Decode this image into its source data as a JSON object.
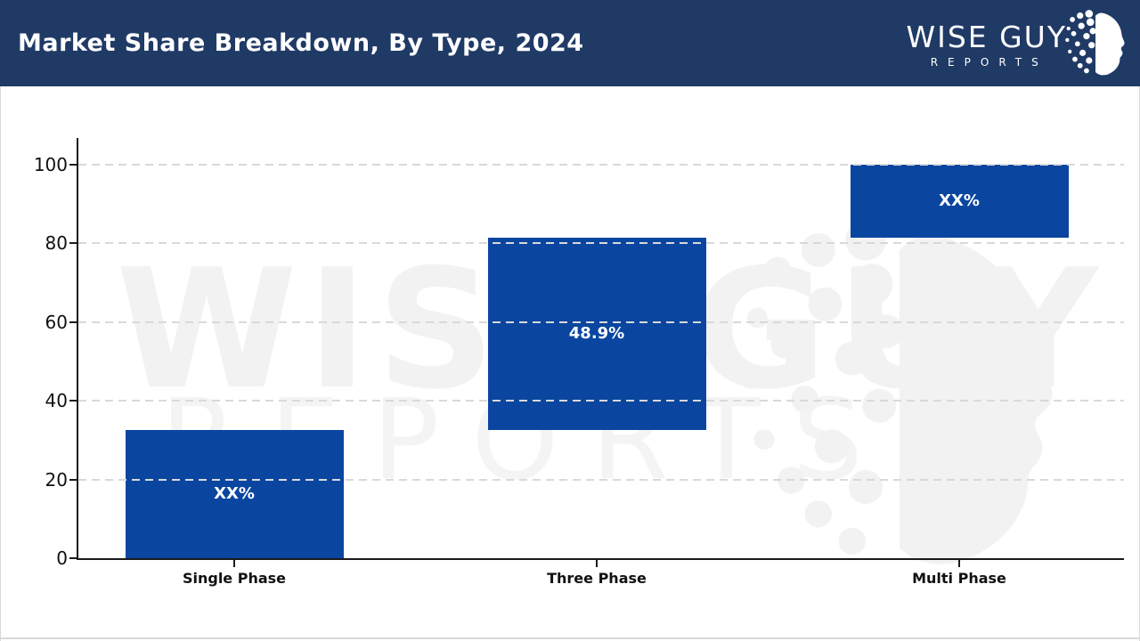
{
  "header": {
    "title": "Market Share Breakdown, By Type, 2024",
    "logo": {
      "name": "WISE GUY",
      "sub": "REPORTS"
    }
  },
  "watermark": {
    "line1": "WISE GUY",
    "line2": "REPORTS"
  },
  "chart_data": {
    "type": "bar",
    "variant": "waterfall",
    "title": "Market Share Breakdown, By Type, 2024",
    "categories": [
      "Single Phase",
      "Three Phase",
      "Multi Phase"
    ],
    "segments": [
      {
        "category": "Single Phase",
        "start": 0,
        "end": 32.5,
        "label": "XX%"
      },
      {
        "category": "Three Phase",
        "start": 32.5,
        "end": 81.4,
        "label": "48.9%"
      },
      {
        "category": "Multi Phase",
        "start": 81.4,
        "end": 100,
        "label": "XX%"
      }
    ],
    "xlabel": "",
    "ylabel": "",
    "yticks": [
      0,
      20,
      40,
      60,
      80,
      100
    ],
    "ylim": [
      0,
      105
    ],
    "grid": "horizontal-dashed",
    "legend": "none",
    "colors": {
      "bar": "#0a46a0",
      "bar_label": "#ffffff",
      "axis": "#1a1a1a",
      "gridline": "#d9d9d9",
      "header_bg": "#203a66",
      "tick_label": "#111111"
    }
  }
}
